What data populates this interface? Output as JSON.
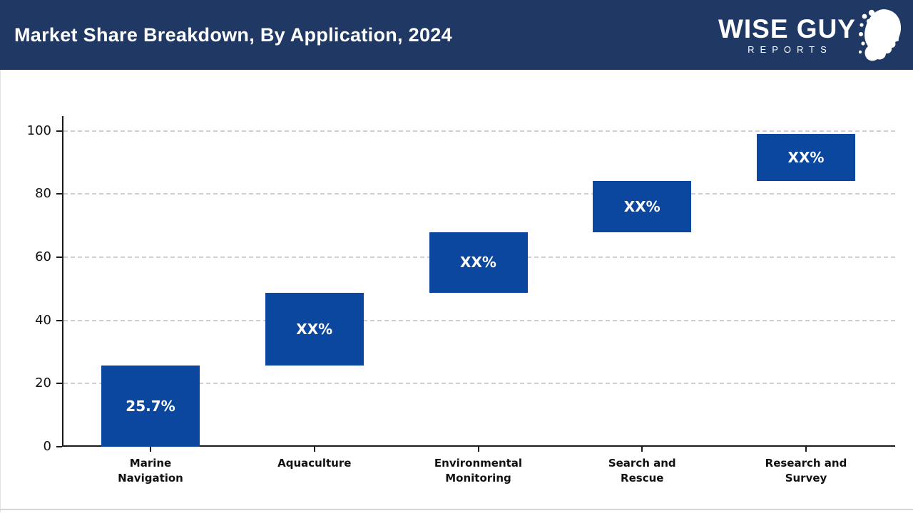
{
  "header": {
    "title": "Market Share Breakdown, By Application, 2024",
    "bg_color": "#1f3864",
    "logo_line1": "WISE GUY",
    "logo_line2": "REPORTS"
  },
  "watermark": {
    "line1": "WISE GUY",
    "line2": "R E P O R T S"
  },
  "chart_data": {
    "type": "bar",
    "variant": "floating-segment-breakdown",
    "title": "Market Share Breakdown, By Application, 2024",
    "categories": [
      "Marine Navigation",
      "Aquaculture",
      "Environmental Monitoring",
      "Search and Rescue",
      "Research and Survey"
    ],
    "segments": [
      {
        "category": "Marine Navigation",
        "start": 0,
        "end": 25.7,
        "label": "25.7%"
      },
      {
        "category": "Aquaculture",
        "start": 25.7,
        "end": 48.7,
        "label": "XX%"
      },
      {
        "category": "Environmental Monitoring",
        "start": 48.7,
        "end": 68.0,
        "label": "XX%"
      },
      {
        "category": "Search and Rescue",
        "start": 68.0,
        "end": 84.2,
        "label": "XX%"
      },
      {
        "category": "Research and Survey",
        "start": 84.2,
        "end": 99.0,
        "label": "XX%"
      }
    ],
    "values": [
      25.7,
      23.0,
      19.3,
      16.2,
      14.8
    ],
    "y_ticks": [
      0,
      20,
      40,
      60,
      80,
      100
    ],
    "ylim": [
      0,
      105
    ],
    "xlabel": "",
    "ylabel": "",
    "grid": "dashed-horizontal",
    "legend": "none",
    "bar_color": "#0b469f",
    "bar_label_color": "#ffffff"
  }
}
